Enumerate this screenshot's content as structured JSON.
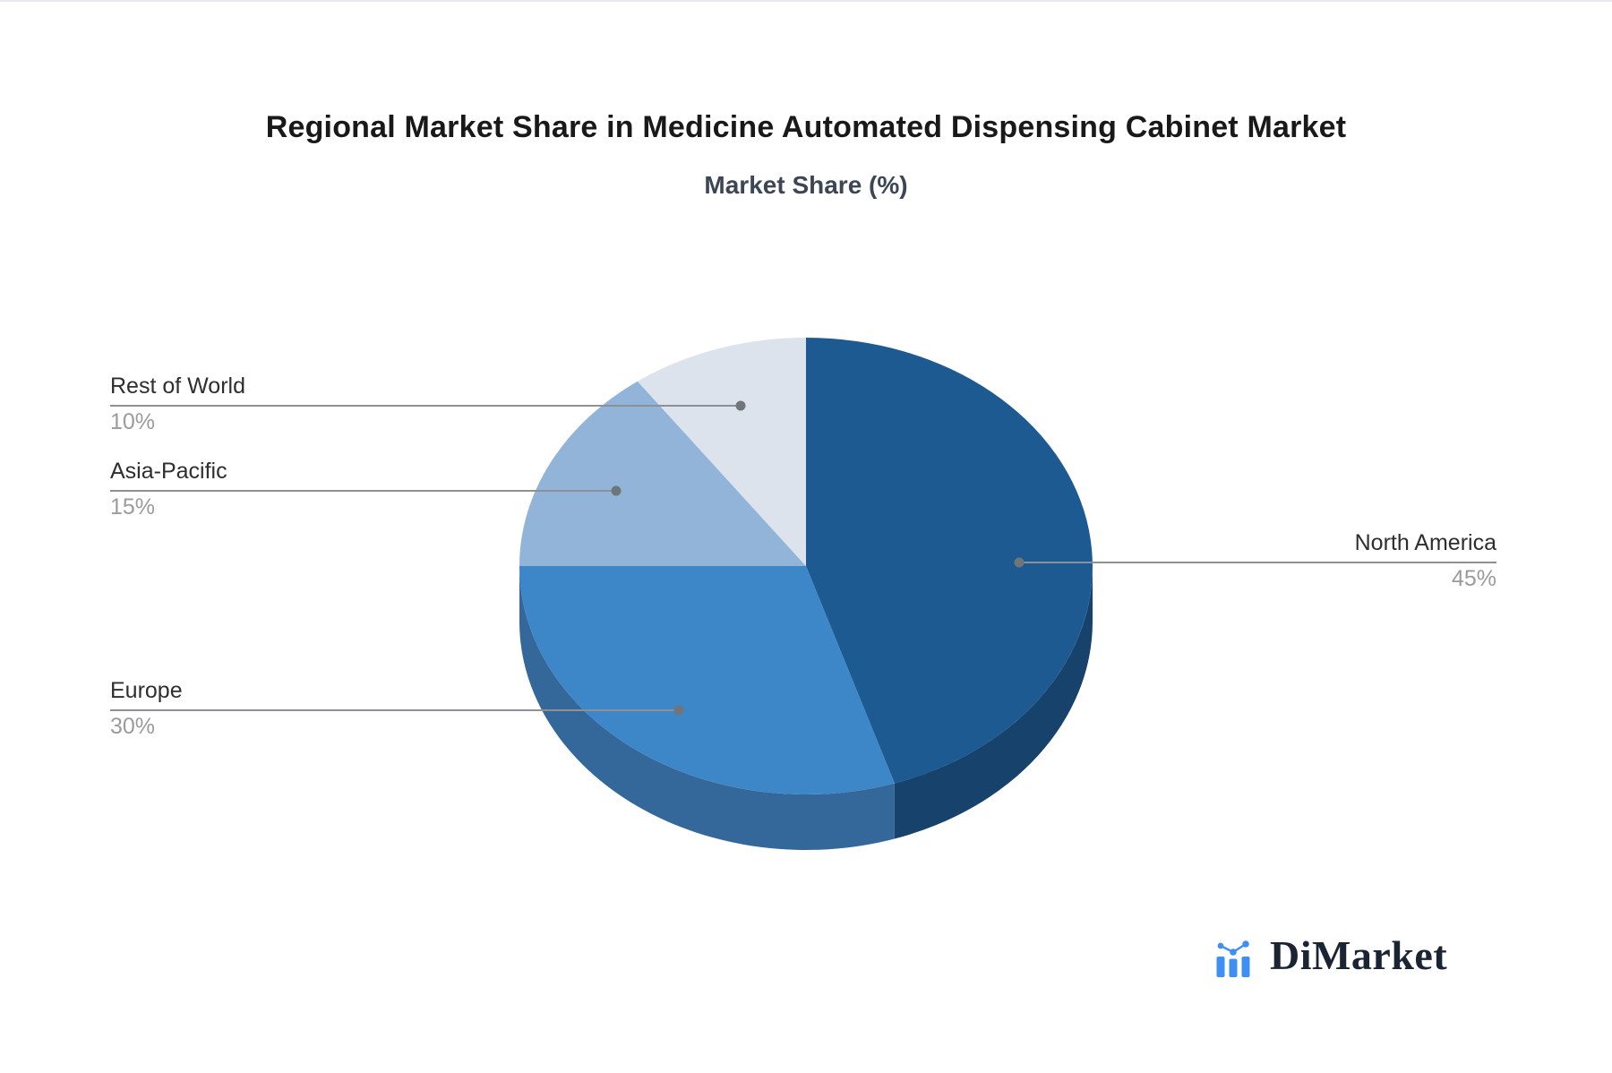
{
  "page": {
    "background": "#ffffff"
  },
  "title": "Regional Market Share in Medicine Automated Dispensing Cabinet Market",
  "subtitle": "Market Share (%)",
  "logo": {
    "text": "DiMarket",
    "icon": "bar-chart-logo-icon",
    "icon_color": "#3d8ff2",
    "text_color": "#1a2433"
  },
  "chart_data": {
    "type": "pie",
    "title": "Regional Market Share in Medicine Automated Dispensing Cabinet Market",
    "subtitle": "Market Share (%)",
    "unit": "%",
    "effect": "3d",
    "start_angle_deg": 90,
    "direction": "clockwise",
    "legend": "none",
    "categories": [
      "North America",
      "Europe",
      "Asia-Pacific",
      "Rest of World"
    ],
    "values": [
      45,
      30,
      15,
      10
    ],
    "labels": [
      "45%",
      "30%",
      "15%",
      "10%"
    ],
    "colors": [
      "#1d5a92",
      "#3d87c9",
      "#91b4d8",
      "#dce3ed"
    ],
    "side_colors": [
      "#16426b",
      "#34689a",
      "#7fa3c9",
      "#c2cdde"
    ],
    "label_name_color": "#2e2e2e",
    "label_value_color": "#9b9b9b",
    "leader_line_color": "#8d9196",
    "leader_dot_color": "#70757a"
  }
}
